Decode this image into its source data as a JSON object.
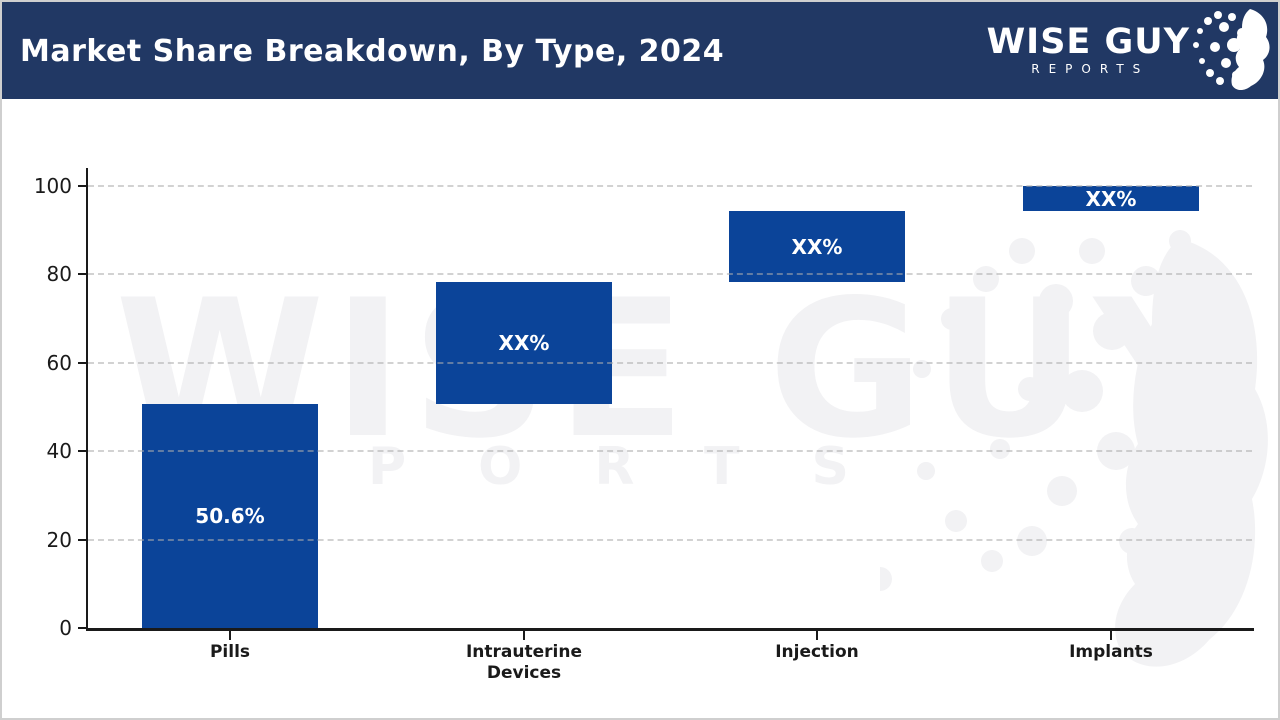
{
  "header": {
    "title": "Market Share Breakdown, By Type, 2024",
    "bg_color": "#213864",
    "logo": {
      "line1": "WISE GUY",
      "line2": "REPORTS"
    }
  },
  "watermark": {
    "line1": "WISE GUY",
    "line2": "PORTS"
  },
  "chart_data": {
    "type": "bar",
    "subtype": "waterfall",
    "title": "Market Share Breakdown, By Type, 2024",
    "xlabel": "",
    "ylabel": "",
    "categories": [
      {
        "lines": [
          "Pills"
        ]
      },
      {
        "lines": [
          "Intrauterine",
          "Devices"
        ]
      },
      {
        "lines": [
          "Injection"
        ]
      },
      {
        "lines": [
          "Implants"
        ]
      }
    ],
    "segments": [
      {
        "name": "Pills",
        "start": 0,
        "end": 50.6,
        "label": "50.6%"
      },
      {
        "name": "Intrauterine Devices",
        "start": 50.6,
        "end": 78.3,
        "label": "XX%"
      },
      {
        "name": "Injection",
        "start": 78.3,
        "end": 94.3,
        "label": "XX%"
      },
      {
        "name": "Implants",
        "start": 94.3,
        "end": 99.9,
        "label": "XX%"
      }
    ],
    "yticks": [
      0,
      20,
      40,
      60,
      80,
      100
    ],
    "ylim": [
      0,
      103
    ],
    "grid": {
      "axis": "y",
      "style": "dashed",
      "drawn_over_bars": true
    },
    "legend": "none",
    "bar_color": "#0b4499",
    "bar_label_color": "#ffffff",
    "axis_color": "#1a1a1a"
  }
}
